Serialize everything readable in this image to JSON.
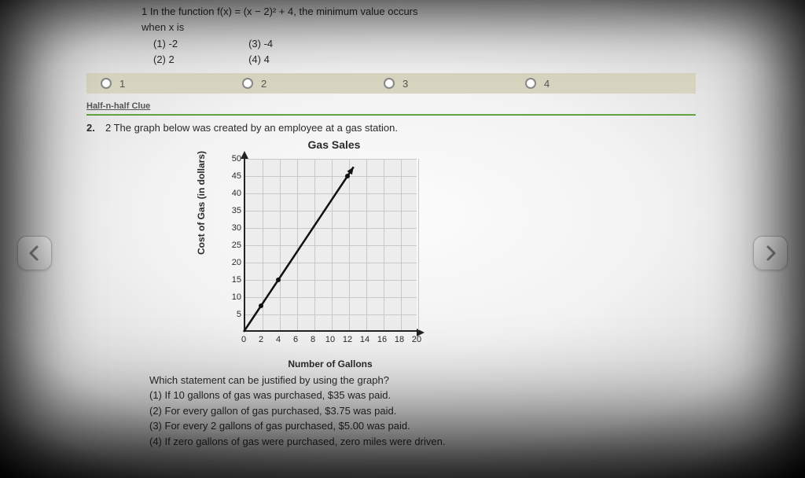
{
  "q1": {
    "stem_line1": "1 In the function f(x) = (x − 2)² + 4, the minimum value occurs",
    "stem_line2": "when x is",
    "c1": "(1) -2",
    "c2": "(2) 2",
    "c3": "(3) -4",
    "c4": "(4) 4",
    "ans1": "1",
    "ans2": "2",
    "ans3": "3",
    "ans4": "4"
  },
  "clue": "Half-n-half Clue",
  "q2": {
    "num": "2.",
    "stem": "2 The graph below was created by an employee at a gas station.",
    "chart": {
      "type": "line",
      "title": "Gas Sales",
      "xlabel": "Number of Gallons",
      "ylabel": "Cost of Gas (in dollars)",
      "xlim": [
        0,
        20
      ],
      "ylim": [
        0,
        50
      ],
      "xtick_step": 2,
      "ytick_step": 5,
      "xticks": [
        "0",
        "2",
        "4",
        "6",
        "8",
        "10",
        "12",
        "14",
        "16",
        "18",
        "20"
      ],
      "yticks": [
        "5",
        "10",
        "15",
        "20",
        "25",
        "30",
        "35",
        "40",
        "45",
        "50"
      ],
      "points": [
        [
          0,
          0
        ],
        [
          2,
          7.5
        ],
        [
          4,
          15
        ],
        [
          12,
          45
        ]
      ],
      "marker_points": [
        [
          2,
          7.5
        ],
        [
          4,
          15
        ],
        [
          12,
          45
        ]
      ],
      "line_color": "#111111",
      "line_width": 2.5,
      "marker_size": 6,
      "background_color": "#ededed",
      "grid_color": "#c8c8c8",
      "axis_color": "#222222",
      "title_fontsize": 14,
      "label_fontsize": 12,
      "tick_fontsize": 11,
      "has_arrowheads": true
    },
    "prompt": "Which statement can be justified by using the graph?",
    "c1": "(1) If 10 gallons of gas was purchased, $35 was paid.",
    "c2": "(2) For every gallon of gas purchased, $3.75 was paid.",
    "c3": "(3) For every 2 gallons of gas purchased, $5.00 was paid.",
    "c4": "(4) If zero gallons of gas were purchased, zero miles were driven."
  },
  "colors": {
    "answer_bar_bg": "#d7d4c0",
    "hr_green": "#5a9a3a"
  }
}
